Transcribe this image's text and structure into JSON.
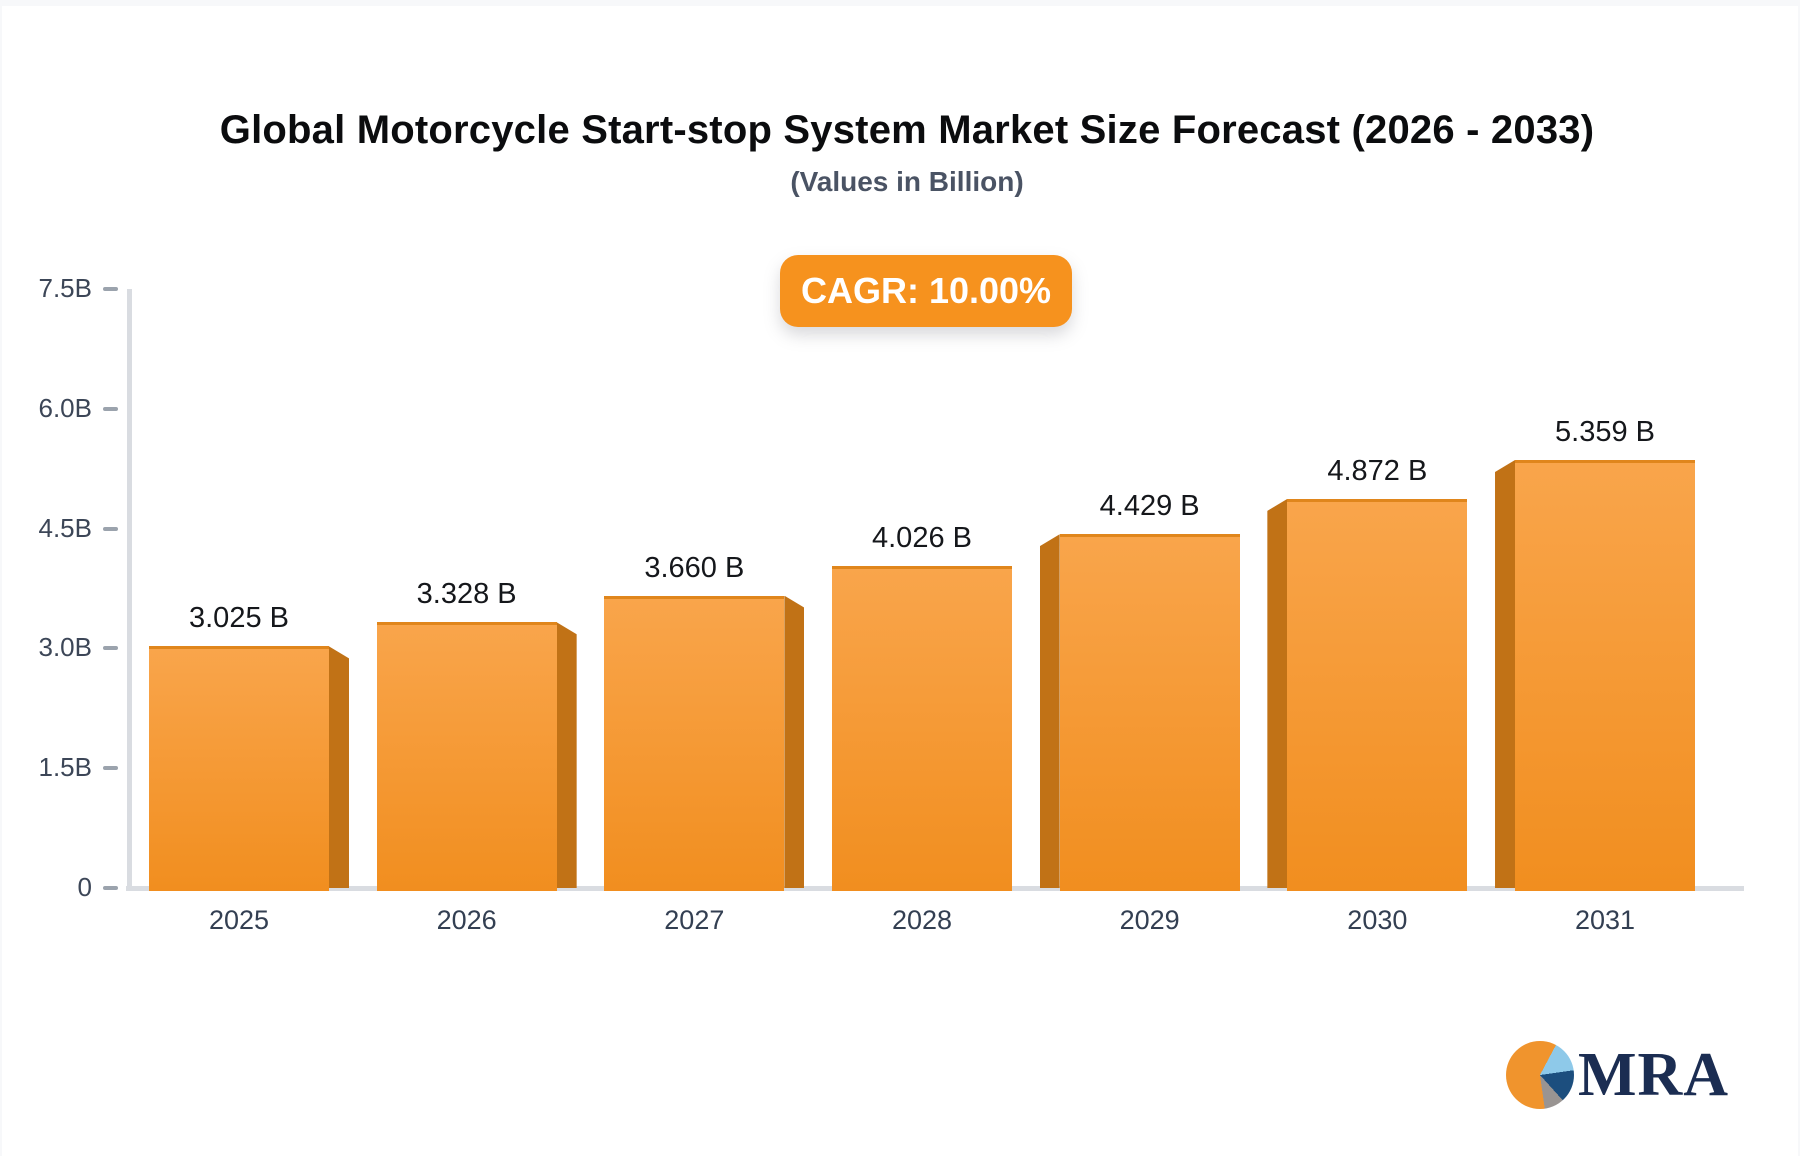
{
  "title": "Global Motorcycle Start-stop System Market Size Forecast (2026 - 2033)",
  "subtitle": "(Values in Billion)",
  "badge": {
    "label": "CAGR: 10.00%",
    "color": "#f6921e",
    "text_color": "#ffffff"
  },
  "chart_data": {
    "type": "bar",
    "categories": [
      "2025",
      "2026",
      "2027",
      "2028",
      "2029",
      "2030",
      "2031"
    ],
    "values": [
      3.025,
      3.328,
      3.66,
      4.026,
      4.429,
      4.872,
      5.359
    ],
    "value_labels": [
      "3.025 B",
      "3.328 B",
      "3.660 B",
      "4.026 B",
      "4.429 B",
      "4.872 B",
      "5.359 B"
    ],
    "title": "Global Motorcycle Start-stop System Market Size Forecast (2026 - 2033)",
    "xlabel": "",
    "ylabel": "",
    "ylim": [
      0,
      7.5
    ],
    "y_ticks": [
      {
        "value": 7.5,
        "label": "7.5B"
      },
      {
        "value": 6.0,
        "label": "6.0B"
      },
      {
        "value": 4.5,
        "label": "4.5B"
      },
      {
        "value": 3.0,
        "label": "3.0B"
      },
      {
        "value": 1.5,
        "label": "1.5B"
      },
      {
        "value": 0,
        "label": "0"
      }
    ],
    "grid": false,
    "legend": "none",
    "bar_color_top": "#f9a54b",
    "bar_color_bottom": "#f18e1f",
    "bar_side_color": "#c17216",
    "bar_top_edge_color": "#e0861c"
  },
  "logo": {
    "text": "MRA",
    "pie_colors": [
      "#f0942d",
      "#8ec9e9",
      "#1c4e7e",
      "#999492"
    ]
  }
}
